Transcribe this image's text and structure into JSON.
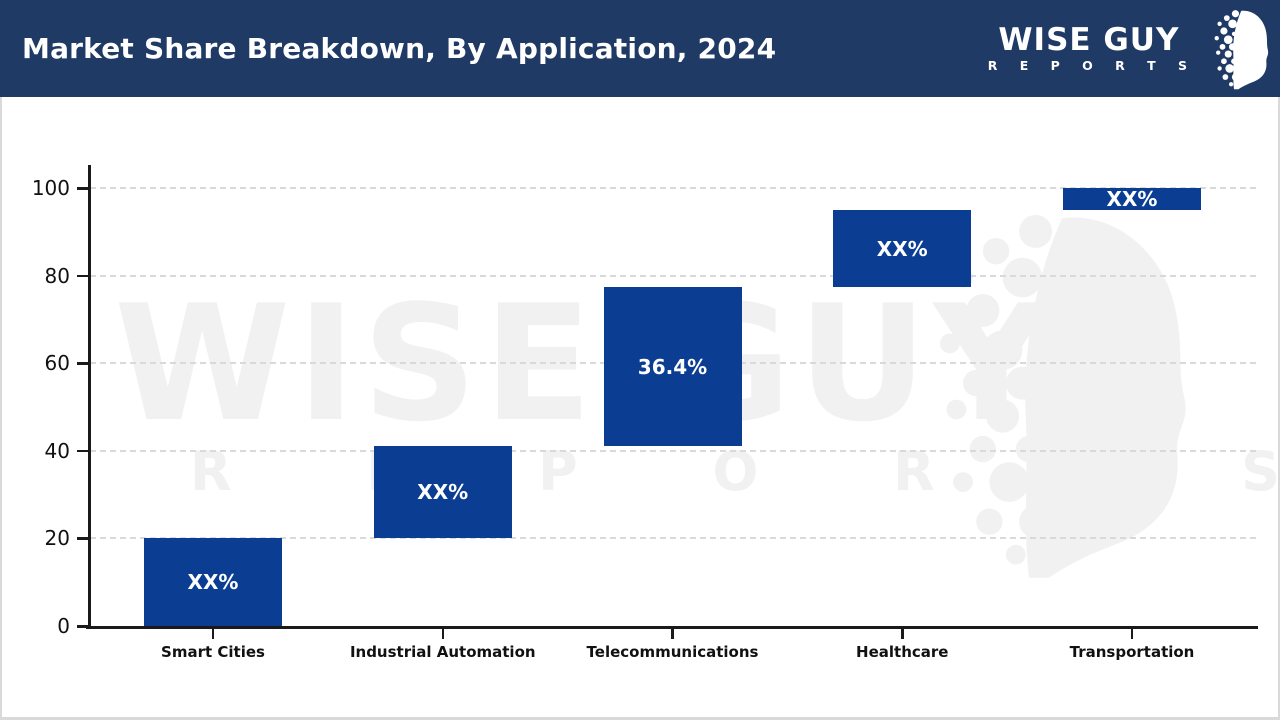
{
  "header": {
    "title": "Market Share Breakdown, By Application, 2024",
    "logo": {
      "line1": "WISE GUY",
      "line2": "R E P O R T S"
    }
  },
  "watermark": {
    "line1": "WISE GUY",
    "line2": "R E P O R T S"
  },
  "chart_data": {
    "type": "bar",
    "subtype": "waterfall",
    "title": "Market Share Breakdown, By Application, 2024",
    "categories": [
      "Smart Cities",
      "Industrial Automation",
      "Telecommunications",
      "Healthcare",
      "Transportation"
    ],
    "values": [
      20,
      21,
      36.4,
      17.5,
      5.1
    ],
    "cumulative_start": [
      0,
      20,
      41,
      77.4,
      94.9
    ],
    "bar_labels": [
      "XX%",
      "XX%",
      "36.4%",
      "XX%",
      "XX%"
    ],
    "xlabel": "",
    "ylabel": "",
    "yticks": [
      0,
      20,
      40,
      60,
      80,
      100
    ],
    "ylim": [
      0,
      105
    ],
    "grid": "horizontal-dashed",
    "legend": "none"
  },
  "colors": {
    "header_bg": "#203a66",
    "bar": "#0b3e93",
    "bar_label": "#ffffff",
    "grid": "#d9d9d9",
    "axis": "#1a1a1a",
    "watermark": "#f1f1f1",
    "page_border": "#d9d9d9"
  }
}
